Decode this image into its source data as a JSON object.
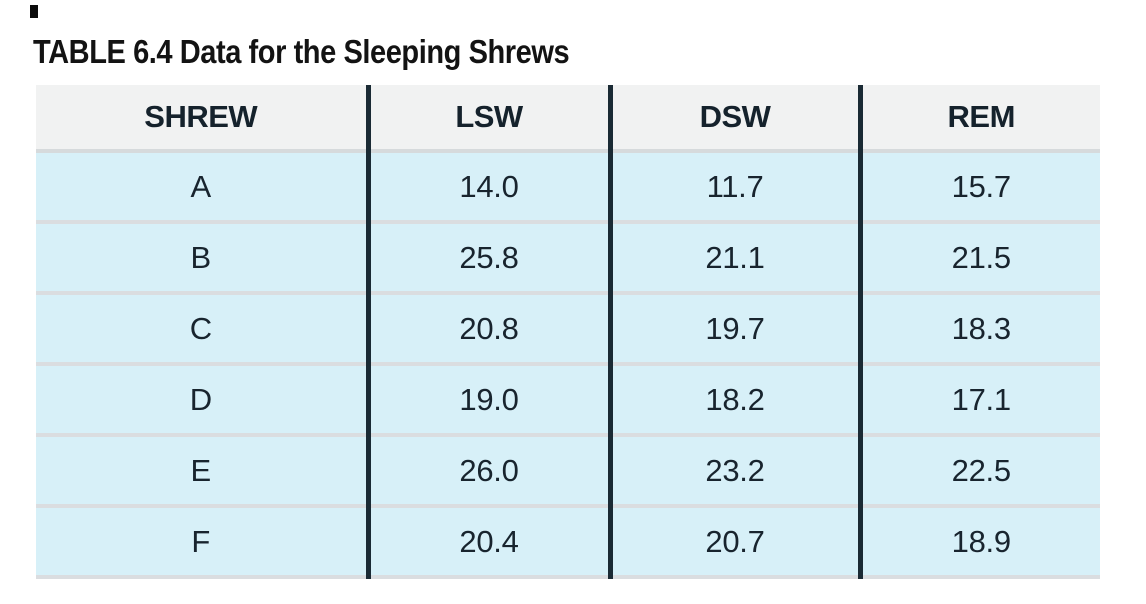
{
  "page": {
    "title": "TABLE 6.4 Data for the Sleeping Shrews"
  },
  "table": {
    "columns": [
      "SHREW",
      "LSW",
      "DSW",
      "REM"
    ],
    "rows": [
      [
        "A",
        "14.0",
        "11.7",
        "15.7"
      ],
      [
        "B",
        "25.8",
        "21.1",
        "21.5"
      ],
      [
        "C",
        "20.8",
        "19.7",
        "18.3"
      ],
      [
        "D",
        "19.0",
        "18.2",
        "17.1"
      ],
      [
        "E",
        "26.0",
        "23.2",
        "22.5"
      ],
      [
        "F",
        "20.4",
        "20.7",
        "18.9"
      ]
    ]
  },
  "colors": {
    "header_bg": "#f1f2f2",
    "row_bg": "#d7f0f8",
    "column_divider": "#1a2a34",
    "row_separator": "#dadde0",
    "text": "#15222c"
  },
  "chart_data": {
    "type": "table",
    "title": "TABLE 6.4 Data for the Sleeping Shrews",
    "columns": [
      "SHREW",
      "LSW",
      "DSW",
      "REM"
    ],
    "rows": [
      [
        "A",
        14.0,
        11.7,
        15.7
      ],
      [
        "B",
        25.8,
        21.1,
        21.5
      ],
      [
        "C",
        20.8,
        19.7,
        18.3
      ],
      [
        "D",
        19.0,
        18.2,
        17.1
      ],
      [
        "E",
        26.0,
        23.2,
        22.5
      ],
      [
        "F",
        20.4,
        20.7,
        18.9
      ]
    ],
    "layout": {
      "grid": "thick dark vertical dividers between columns, thin light horizontal separators between rows",
      "header_style": "bold, light gray background",
      "body_style": "light blue background, centered values"
    }
  }
}
